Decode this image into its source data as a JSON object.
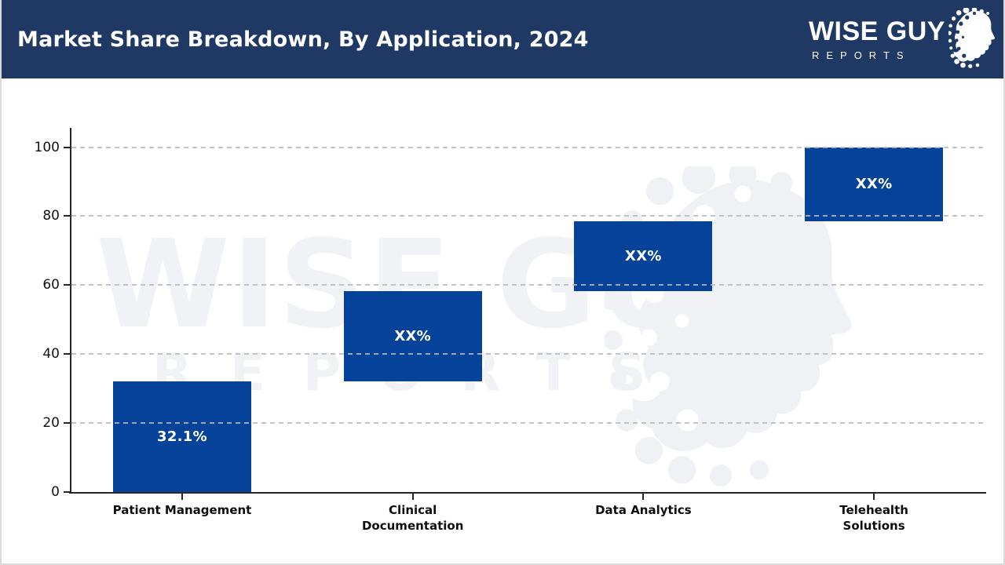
{
  "header": {
    "title": "Market Share Breakdown, By Application, 2024",
    "logo": {
      "brand": "WISE GUY",
      "sub": "REPORTS"
    }
  },
  "watermark": {
    "brand": "WISE GUY",
    "sub": "REPORTS"
  },
  "colors": {
    "header_bg": "#1f3864",
    "bar": "#054299",
    "axis": "#262626",
    "gridline": "#b9b9b9",
    "watermark": "#f1f2f5",
    "value_label": "#ffffff"
  },
  "chart_data": {
    "type": "bar",
    "subtype": "waterfall",
    "title": "Market Share Breakdown, By Application, 2024",
    "categories": [
      "Patient Management",
      "Clinical Documentation",
      "Data Analytics",
      "Telehealth Solutions"
    ],
    "tick_labels": [
      "Patient Management",
      "Clinical\nDocumentation",
      "Data Analytics",
      "Telehealth\nSolutions"
    ],
    "segments": [
      {
        "category": "Patient Management",
        "start": 0,
        "end": 32.1,
        "value": 32.1,
        "label": "32.1%"
      },
      {
        "category": "Clinical Documentation",
        "start": 32.1,
        "end": 58.3,
        "value": 26.2,
        "label": "XX%"
      },
      {
        "category": "Data Analytics",
        "start": 58.3,
        "end": 78.4,
        "value": 20.1,
        "label": "XX%"
      },
      {
        "category": "Telehealth Solutions",
        "start": 78.4,
        "end": 100,
        "value": 21.6,
        "label": "XX%"
      }
    ],
    "xlabel": "",
    "ylabel": "",
    "ylim": [
      0,
      100
    ],
    "yticks": [
      0,
      20,
      40,
      60,
      80,
      100
    ],
    "grid": "horizontal-dashed",
    "legend": "none",
    "bar_color": "#054299",
    "value_label_color": "#ffffff"
  }
}
